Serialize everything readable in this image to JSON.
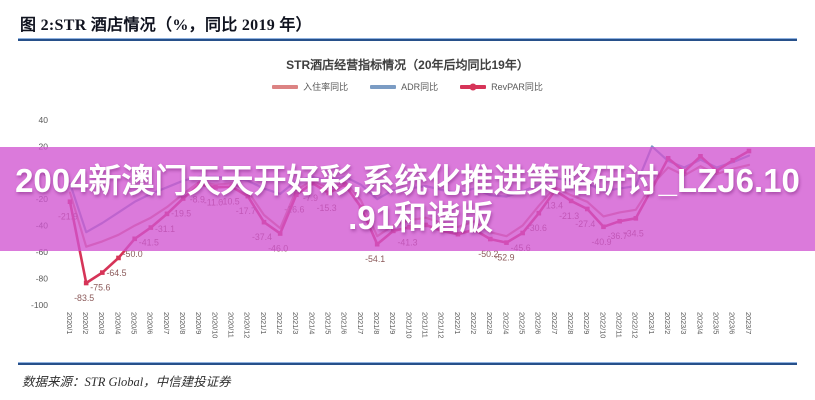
{
  "figure": {
    "title": "图 2:STR 酒店情况（%，同比 2019 年）",
    "source": "数据来源：STR Global，中信建投证券"
  },
  "overlay": {
    "line1": "2004新澳门天天开好彩,系统化推进策略研讨_LZJ6.10",
    "line2": ".91和谐版",
    "color": "#d155d1",
    "opacity": 0.78,
    "text_color": "#ffffff"
  },
  "chart_data": {
    "type": "line",
    "title": "STR酒店经营指标情况（20年后均同比19年）",
    "categories": [
      "2020/1",
      "2020/2",
      "2020/3",
      "2020/4",
      "2020/5",
      "2020/6",
      "2020/7",
      "2020/8",
      "2020/9",
      "2020/10",
      "2020/11",
      "2020/12",
      "2021/1",
      "2021/2",
      "2021/3",
      "2021/4",
      "2021/5",
      "2021/6",
      "2021/7",
      "2021/8",
      "2021/9",
      "2021/10",
      "2021/11",
      "2021/12",
      "2022/1",
      "2022/2",
      "2022/3",
      "2022/4",
      "2022/5",
      "2022/6",
      "2022/7",
      "2022/8",
      "2022/9",
      "2022/10",
      "2022/11",
      "2022/12",
      "2023/1",
      "2023/2",
      "2023/3",
      "2023/4",
      "2023/5",
      "2023/6",
      "2023/7"
    ],
    "series": [
      {
        "name": "入住率同比",
        "color": "#dc8383",
        "values": [
          -15,
          -56,
          -52,
          -47,
          -40,
          -34,
          -26,
          -16,
          -7,
          -9,
          -8,
          -14,
          -32,
          -42,
          -13,
          -6,
          -12,
          -7,
          -21,
          -48,
          -40,
          -36,
          -34,
          -38,
          -41,
          -37,
          -45,
          -48,
          -40,
          -25,
          -11,
          -17,
          -22,
          -33,
          -30,
          -28,
          -9,
          4,
          -2,
          5,
          -1,
          3,
          6
        ]
      },
      {
        "name": "ADR同比",
        "color": "#7b9cc4",
        "values": [
          -8,
          -45,
          -38,
          -30,
          -22,
          -16,
          -11,
          -6,
          -3,
          -3,
          -4,
          -6,
          -12,
          -16,
          -6,
          -3,
          -6,
          -3,
          -9,
          -20,
          -13,
          -12,
          -10,
          -13,
          -15,
          -12,
          -17,
          -18,
          -14,
          -9,
          -4,
          -6,
          -8,
          -14,
          -12,
          -10,
          20,
          9,
          4,
          10,
          4,
          8,
          13
        ]
      },
      {
        "name": "RevPAR同比",
        "color": "#d63458",
        "values": [
          -21.9,
          -83.5,
          -75.6,
          -64.5,
          -50.0,
          -41.5,
          -31.1,
          -19.5,
          -8.9,
          -11.0,
          -10.5,
          -17.7,
          -37.4,
          -46.0,
          -16.6,
          -7.9,
          -15.3,
          -9.0,
          -26.0,
          -54.1,
          -44.0,
          -41.3,
          -39.5,
          -44.0,
          -46.5,
          -43.0,
          -50.2,
          -52.9,
          -45.6,
          -30.6,
          -13.4,
          -21.3,
          -27.4,
          -40.9,
          -36.7,
          -34.5,
          -12.0,
          11.0,
          1.0,
          12.5,
          1.5,
          9.5,
          16.5
        ],
        "labels": [
          -21.9,
          -83.5,
          -75.6,
          -64.5,
          -50.0,
          -41.5,
          -31.1,
          -19.5,
          -8.9,
          -11.0,
          -10.5,
          -17.7,
          -37.4,
          -46.0,
          -16.6,
          -7.9,
          -15.3,
          null,
          null,
          -54.1,
          null,
          -41.3,
          null,
          null,
          null,
          null,
          -50.2,
          -52.9,
          -45.6,
          -30.6,
          -13.4,
          -21.3,
          -27.4,
          -40.9,
          -36.7,
          -34.5,
          null,
          null,
          null,
          null,
          null,
          null,
          null
        ]
      }
    ],
    "ylim": [
      -100,
      40
    ],
    "yticks": [
      40,
      20,
      0,
      -20,
      -40,
      -60,
      -80,
      -100
    ],
    "legend_position": "top",
    "grid": false,
    "tick_color": "#595959",
    "label_color": "#8b5a5a"
  }
}
